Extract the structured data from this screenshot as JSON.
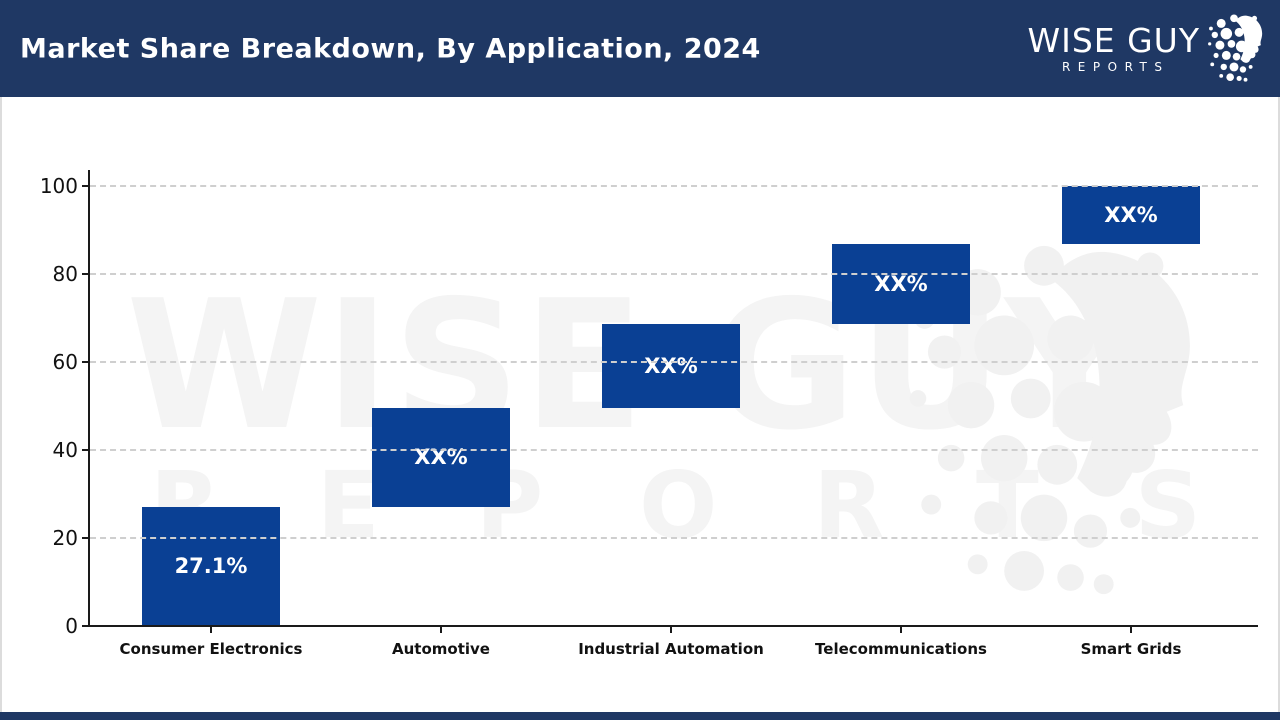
{
  "header": {
    "title": "Market Share Breakdown, By Application, 2024",
    "brand": {
      "line1": "WISE GUY",
      "line2": "REPORTS"
    }
  },
  "watermark": {
    "line1": "WISE GUY",
    "line2": "REPORTS"
  },
  "icons": {
    "brand_face": "dot-face-profile"
  },
  "colors": {
    "header_bg": "#1f3864",
    "footer_bg": "#1f3864",
    "bar_fill": "#0a4094",
    "bar_label": "#ffffff",
    "grid": "#cfcfcf",
    "axis": "#1a1a1a",
    "tick_text": "#111111",
    "watermark": "#f4f4f4"
  },
  "chart_data": {
    "type": "bar",
    "subtype": "waterfall-floating-bars",
    "title": "Market Share Breakdown, By Application, 2024",
    "xlabel": "",
    "ylabel": "",
    "ylim": [
      0,
      100
    ],
    "yticks": [
      0,
      20,
      40,
      60,
      80,
      100
    ],
    "grid": "horizontal-dashed",
    "legend": "none",
    "categories": [
      "Consumer Electronics",
      "Automotive",
      "Industrial Automation",
      "Telecommunications",
      "Smart Grids"
    ],
    "bars": [
      {
        "category": "Consumer Electronics",
        "start": 0,
        "end": 27.1,
        "label": "27.1%"
      },
      {
        "category": "Automotive",
        "start": 27.1,
        "end": 49.6,
        "label": "XX%"
      },
      {
        "category": "Industrial Automation",
        "start": 49.6,
        "end": 68.6,
        "label": "XX%"
      },
      {
        "category": "Telecommunications",
        "start": 68.6,
        "end": 86.8,
        "label": "XX%"
      },
      {
        "category": "Smart Grids",
        "start": 86.8,
        "end": 100,
        "label": "XX%"
      }
    ]
  }
}
